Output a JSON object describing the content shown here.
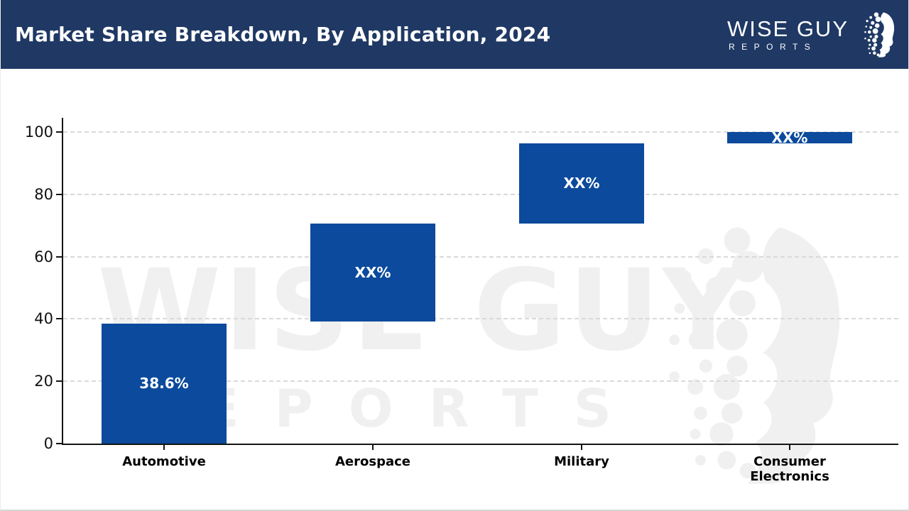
{
  "header": {
    "title": "Market Share Breakdown, By Application, 2024",
    "logo": {
      "line1": "WISE GUY",
      "line2": "REPORTS"
    }
  },
  "watermark": {
    "line1": "WISE GUY",
    "line2": "REPORTS"
  },
  "chart_data": {
    "type": "bar",
    "subtype": "waterfall",
    "title": "Market Share Breakdown, By Application, 2024",
    "categories": [
      "Automotive",
      "Aerospace",
      "Military",
      "Consumer Electronics"
    ],
    "segments": [
      {
        "category": "Automotive",
        "start": 0,
        "end": 38.6,
        "label": "38.6%"
      },
      {
        "category": "Aerospace",
        "start": 39.2,
        "end": 70.6,
        "label": "XX%"
      },
      {
        "category": "Military",
        "start": 70.6,
        "end": 96.4,
        "label": "XX%"
      },
      {
        "category": "Consumer Electronics",
        "start": 96.4,
        "end": 100,
        "label": "XX%"
      }
    ],
    "yticks": [
      0,
      20,
      40,
      60,
      80,
      100
    ],
    "ylim": [
      0,
      104.5
    ],
    "xlabel": "",
    "ylabel": "",
    "grid": "dashed-horizontal",
    "legend": "none"
  },
  "colors": {
    "header_bg": "#1f3864",
    "bar": "#0b4a9c",
    "grid": "#d9d9d9",
    "axis": "#141414",
    "watermark": "#f0f0f0",
    "bar_label": "#ffffff",
    "bar_label_outside": "#0a3d85",
    "title_text": "#ffffff"
  }
}
